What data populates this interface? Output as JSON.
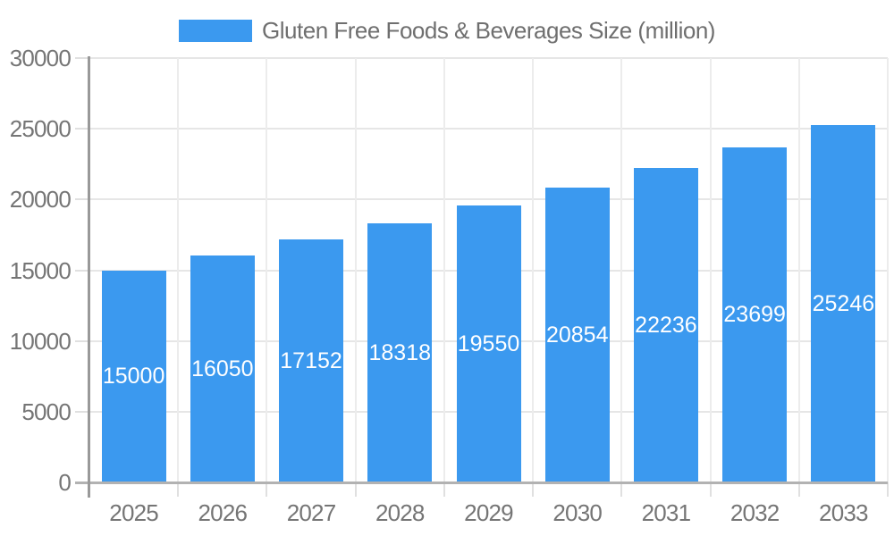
{
  "legend": {
    "swatch_color": "#3B99EF"
  },
  "chart_data": {
    "type": "bar",
    "title": "Gluten Free Foods & Beverages Size (million)",
    "series_name": "Gluten Free Foods & Beverages Size (million)",
    "categories": [
      "2025",
      "2026",
      "2027",
      "2028",
      "2029",
      "2030",
      "2031",
      "2032",
      "2033"
    ],
    "values": [
      15000,
      16050,
      17152,
      18318,
      19550,
      20854,
      22236,
      23699,
      25246
    ],
    "value_labels": [
      "15000",
      "16050",
      "17152",
      "18318",
      "19550",
      "20854",
      "22236",
      "23699",
      "25246"
    ],
    "xlabel": "",
    "ylabel": "",
    "ylim": [
      0,
      30000
    ],
    "yticks": [
      0,
      5000,
      10000,
      15000,
      20000,
      25000,
      30000
    ],
    "ytick_labels": [
      "0",
      "5000",
      "10000",
      "15000",
      "20000",
      "25000",
      "30000"
    ],
    "grid": true,
    "legend_position": "top",
    "colors": {
      "bar": "#3B99EF",
      "axis_text": "#757575",
      "legend_text": "#6F6F6F",
      "value_label": "#FFFFFF",
      "gridline_h": "#E6E6E6",
      "gridline_v": "#ECECEC",
      "tick": "#E0E0E0",
      "x_axis_line": "#B2B2B2",
      "y_axis_line": "#999999",
      "background": "#FFFFFF"
    }
  }
}
